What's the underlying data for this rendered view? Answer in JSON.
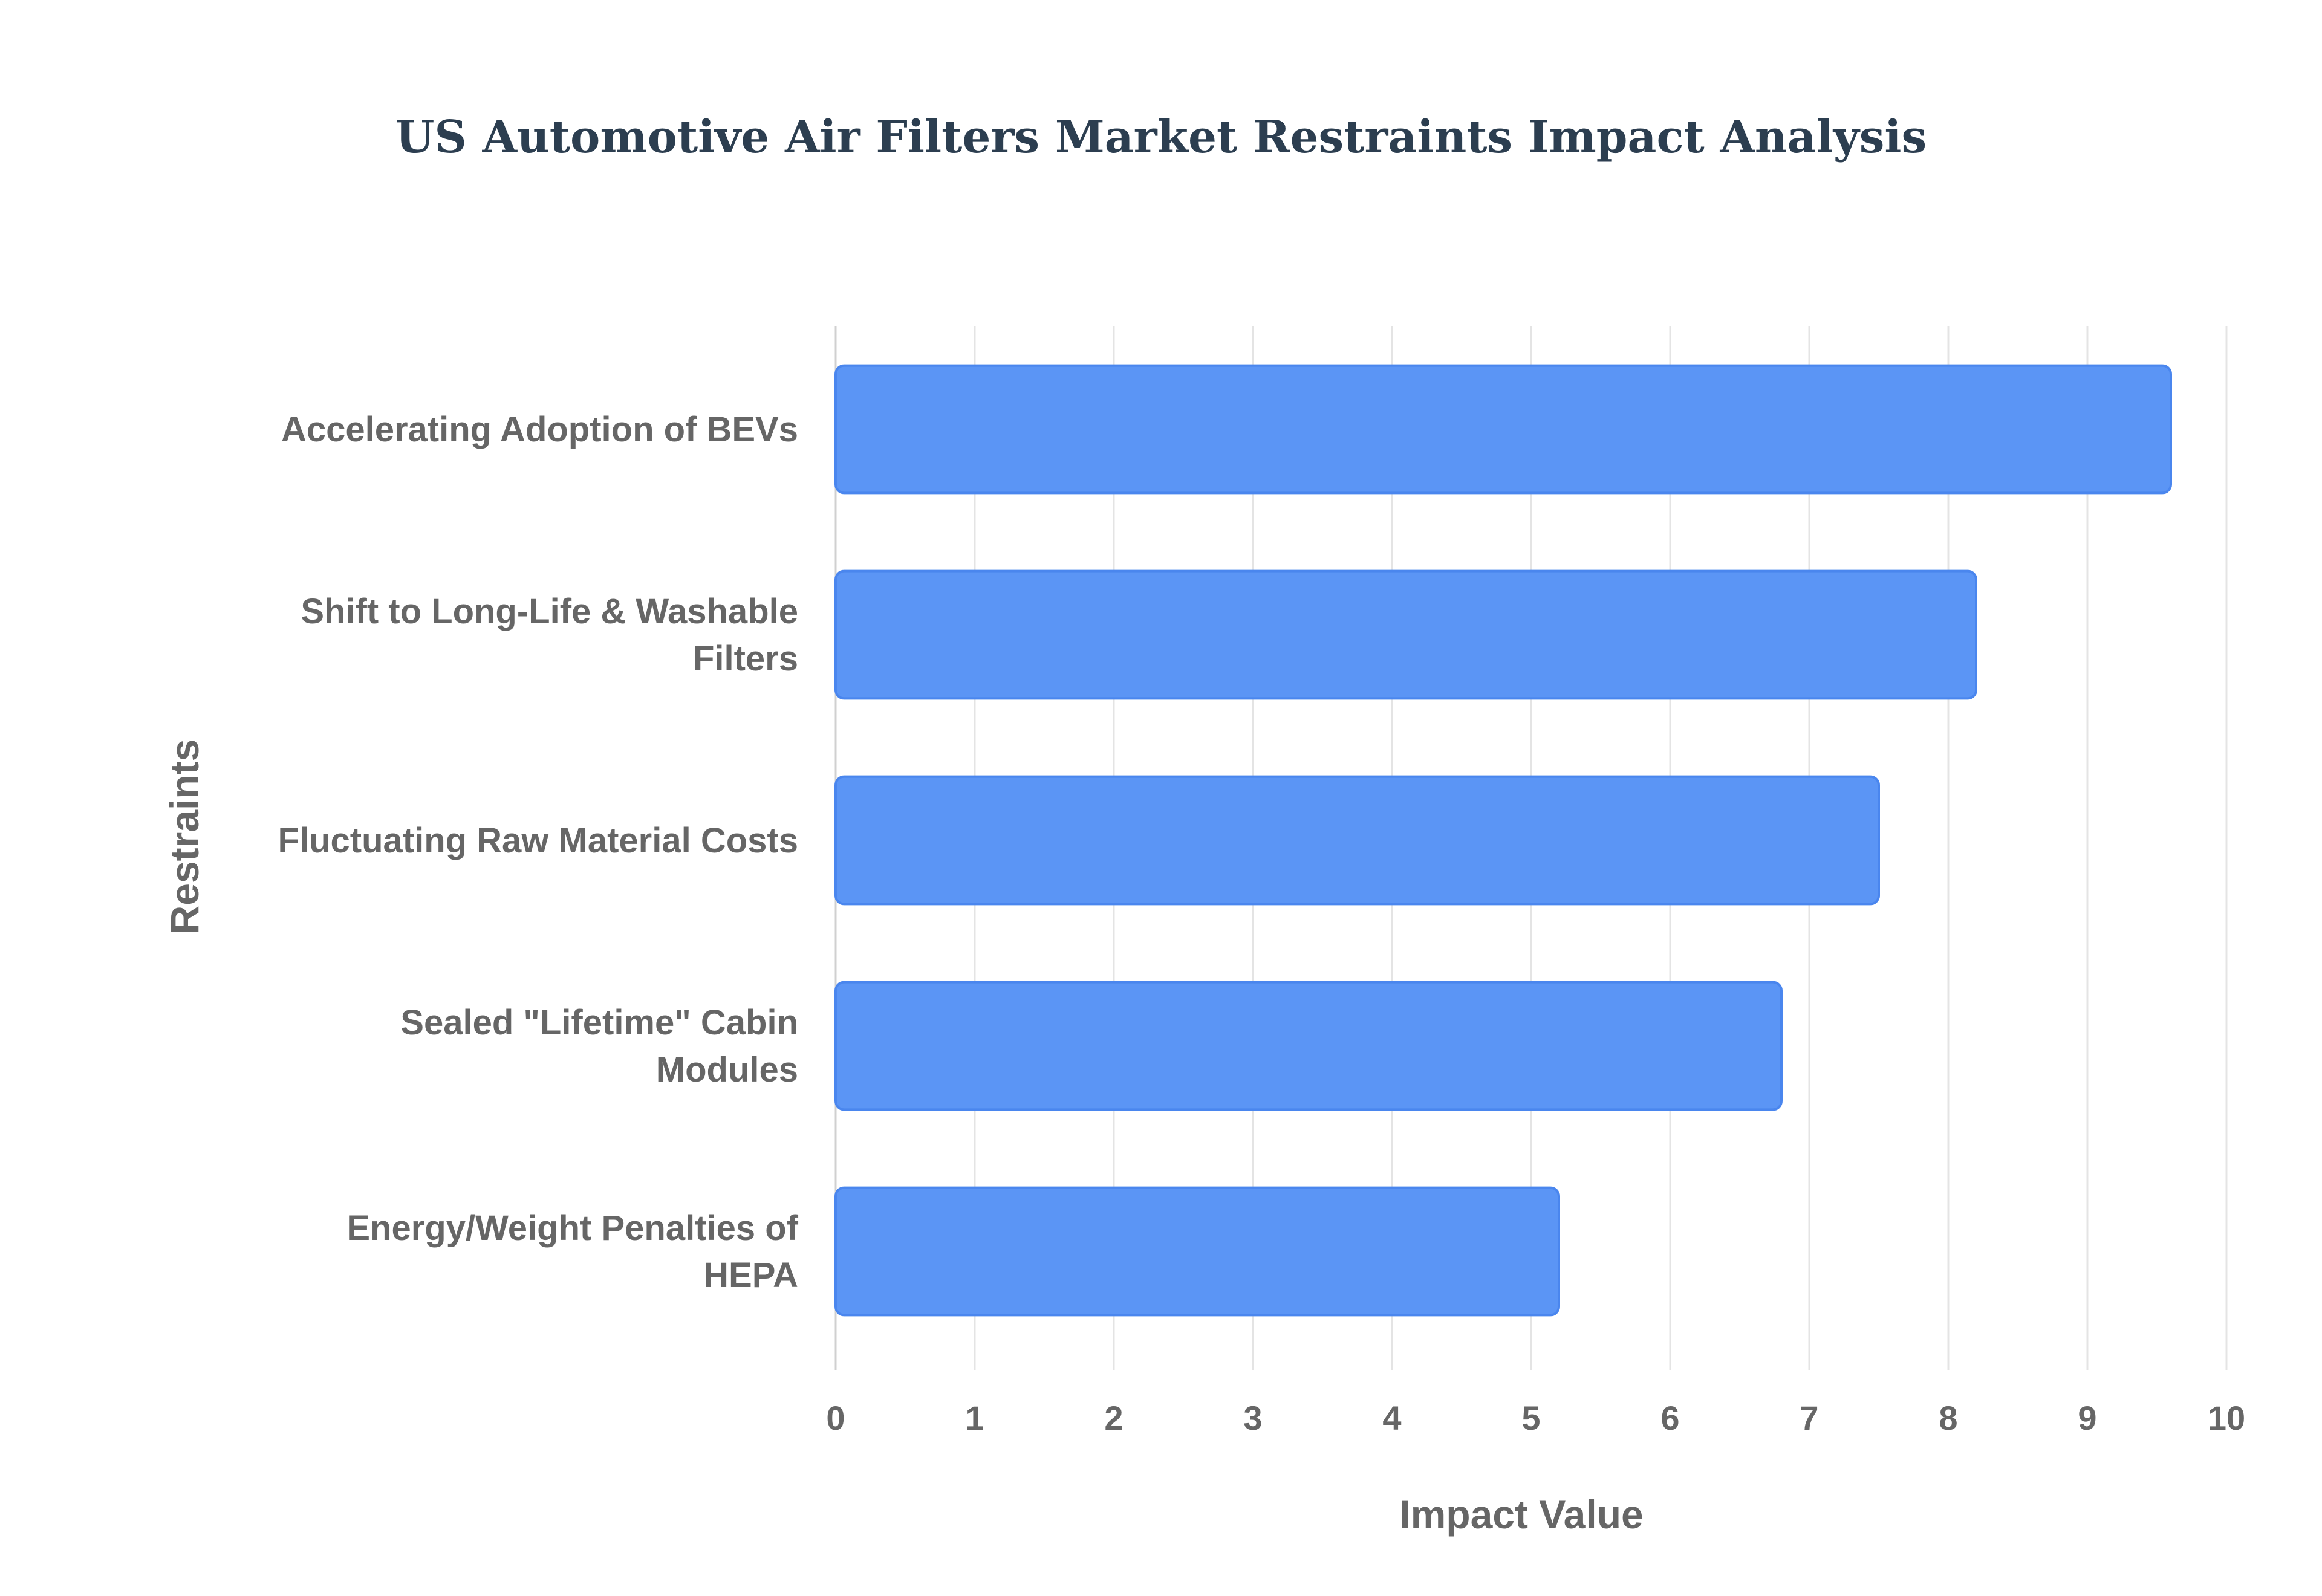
{
  "chart_data": {
    "type": "bar",
    "orientation": "horizontal",
    "title": "US Automotive Air Filters Market Restraints Impact Analysis",
    "xlabel": "Impact Value",
    "ylabel": "Restraints",
    "categories": [
      "Accelerating Adoption of BEVs",
      "Shift to Long-Life & Washable Filters",
      "Fluctuating Raw Material Costs",
      "Sealed \"Lifetime\" Cabin Modules",
      "Energy/Weight Penalties of HEPA"
    ],
    "values": [
      9.6,
      8.2,
      7.5,
      6.8,
      5.2
    ],
    "xlim": [
      0,
      10
    ],
    "xticks": [
      "0",
      "1",
      "2",
      "3",
      "4",
      "5",
      "6",
      "7",
      "8",
      "9",
      "10"
    ],
    "grid": true,
    "legend": "none",
    "colors": {
      "bar_fill": "#5b95f5",
      "bar_stroke": "#4a86ee",
      "title": "#2c3e50",
      "text": "#666666",
      "grid": "#e4e4e4"
    }
  }
}
